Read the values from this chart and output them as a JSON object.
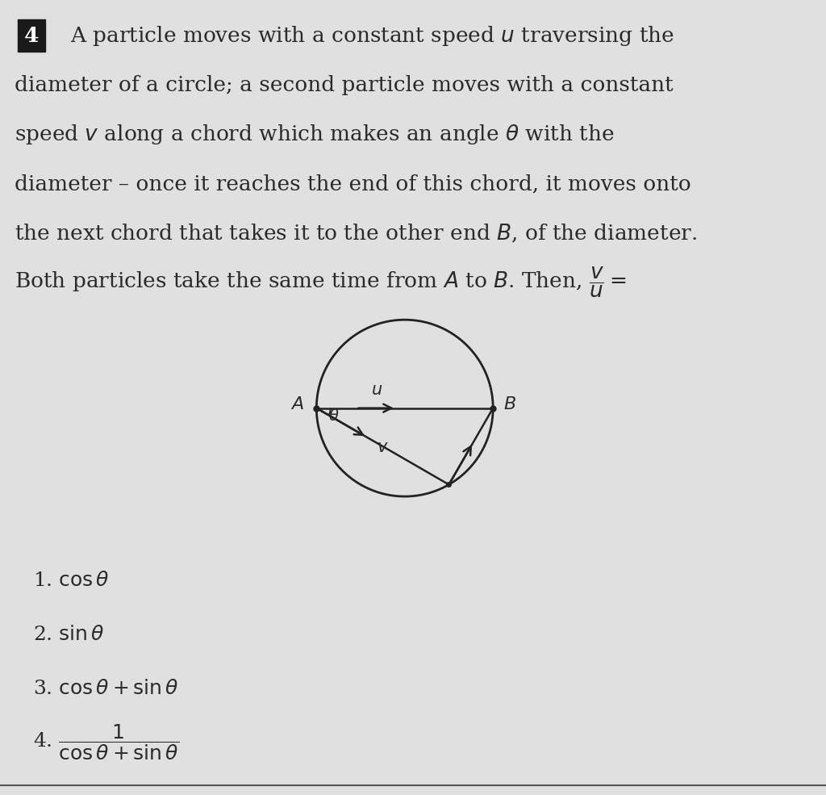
{
  "bg_color": "#e0e0e0",
  "text_color": "#2a2a2a",
  "question_number": "4",
  "qnum_bg": "#1a1a1a",
  "qnum_color": "#ffffff",
  "line1": "A particle moves with a constant speed $u$ traversing the",
  "line2": "diameter of a circle; a second particle moves with a constant",
  "line3": "speed $v$ along a chord which makes an angle $\\theta$ with the",
  "line4": "diameter – once it reaches the end of this chord, it moves onto",
  "line5": "the next chord that takes it to the other end $B$, of the diameter.",
  "line6": "Both particles take the same time from $A$ to $B$. Then, $\\dfrac{v}{u} =$",
  "options": [
    "1. $\\cos\\theta$",
    "2. $\\sin\\theta$",
    "3. $\\cos\\theta + \\sin\\theta$",
    "4. $\\dfrac{1}{\\cos\\theta + \\sin\\theta}$"
  ],
  "font_size_text": 19,
  "font_size_options": 18,
  "theta_deg": 30
}
